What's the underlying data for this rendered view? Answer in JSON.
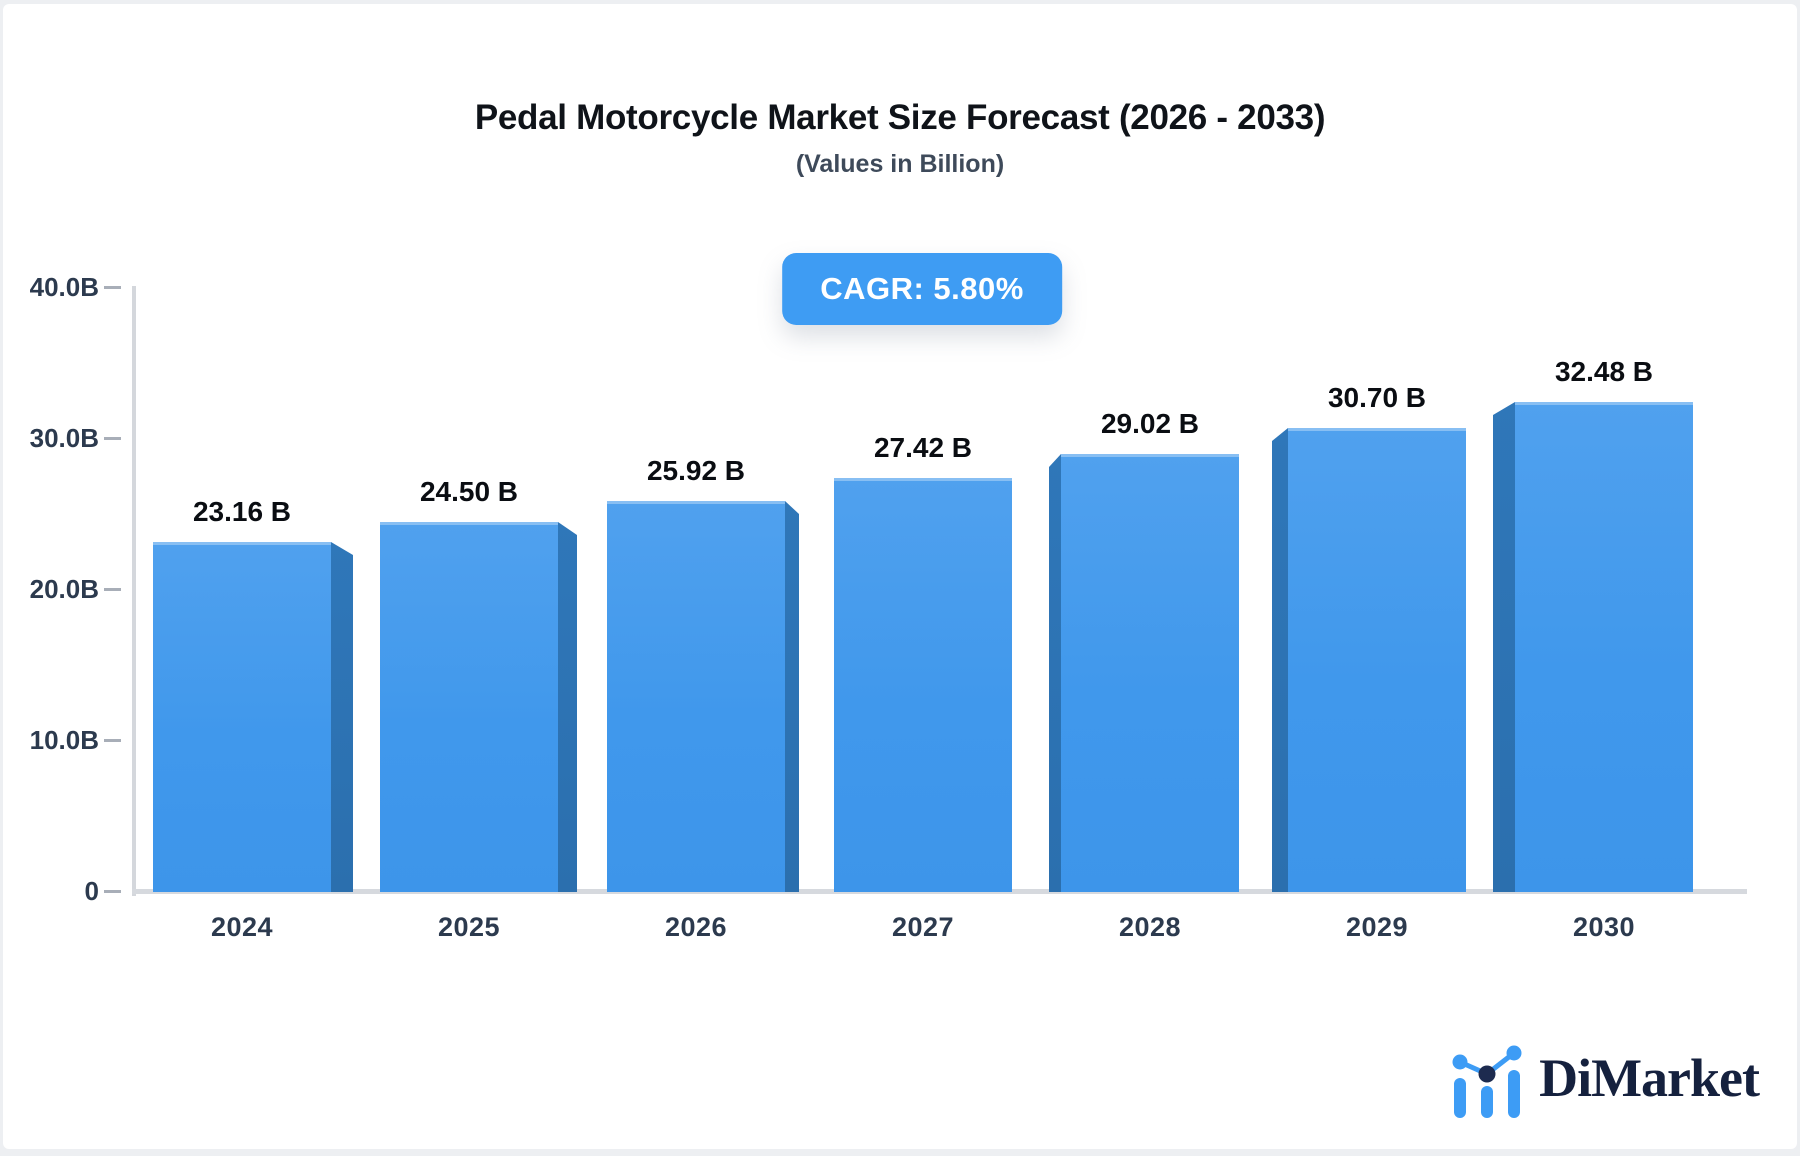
{
  "header": {
    "title": "Pedal Motorcycle Market Size Forecast (2026 - 2033)",
    "subtitle": "(Values in Billion)",
    "cagr_label": "CAGR: 5.80%"
  },
  "chart_data": {
    "type": "bar",
    "title": "Pedal Motorcycle Market Size Forecast (2026 - 2033)",
    "subtitle": "(Values in Billion)",
    "annotations": [
      "CAGR: 5.80%"
    ],
    "categories": [
      "2024",
      "2025",
      "2026",
      "2027",
      "2028",
      "2029",
      "2030"
    ],
    "values": [
      23.16,
      24.5,
      25.92,
      27.42,
      29.02,
      30.7,
      32.48
    ],
    "value_labels": [
      "23.16 B",
      "24.50 B",
      "25.92 B",
      "27.42 B",
      "29.02 B",
      "30.70 B",
      "32.48 B"
    ],
    "ylim": [
      0,
      40
    ],
    "yticks": [
      {
        "value": 40,
        "label": "40.0B"
      },
      {
        "value": 30,
        "label": "30.0B"
      },
      {
        "value": 20,
        "label": "20.0B"
      },
      {
        "value": 10,
        "label": "10.0B"
      },
      {
        "value": 0,
        "label": "0"
      }
    ],
    "grid": false,
    "legend_position": "none",
    "bar_color": "#3f98ec",
    "bar_side_color": "#2d73b6"
  },
  "logo": {
    "text": "DiMarket",
    "icon": "bar-line-chart-icon",
    "accent_color": "#3d9cf5",
    "text_color": "#15213e"
  }
}
